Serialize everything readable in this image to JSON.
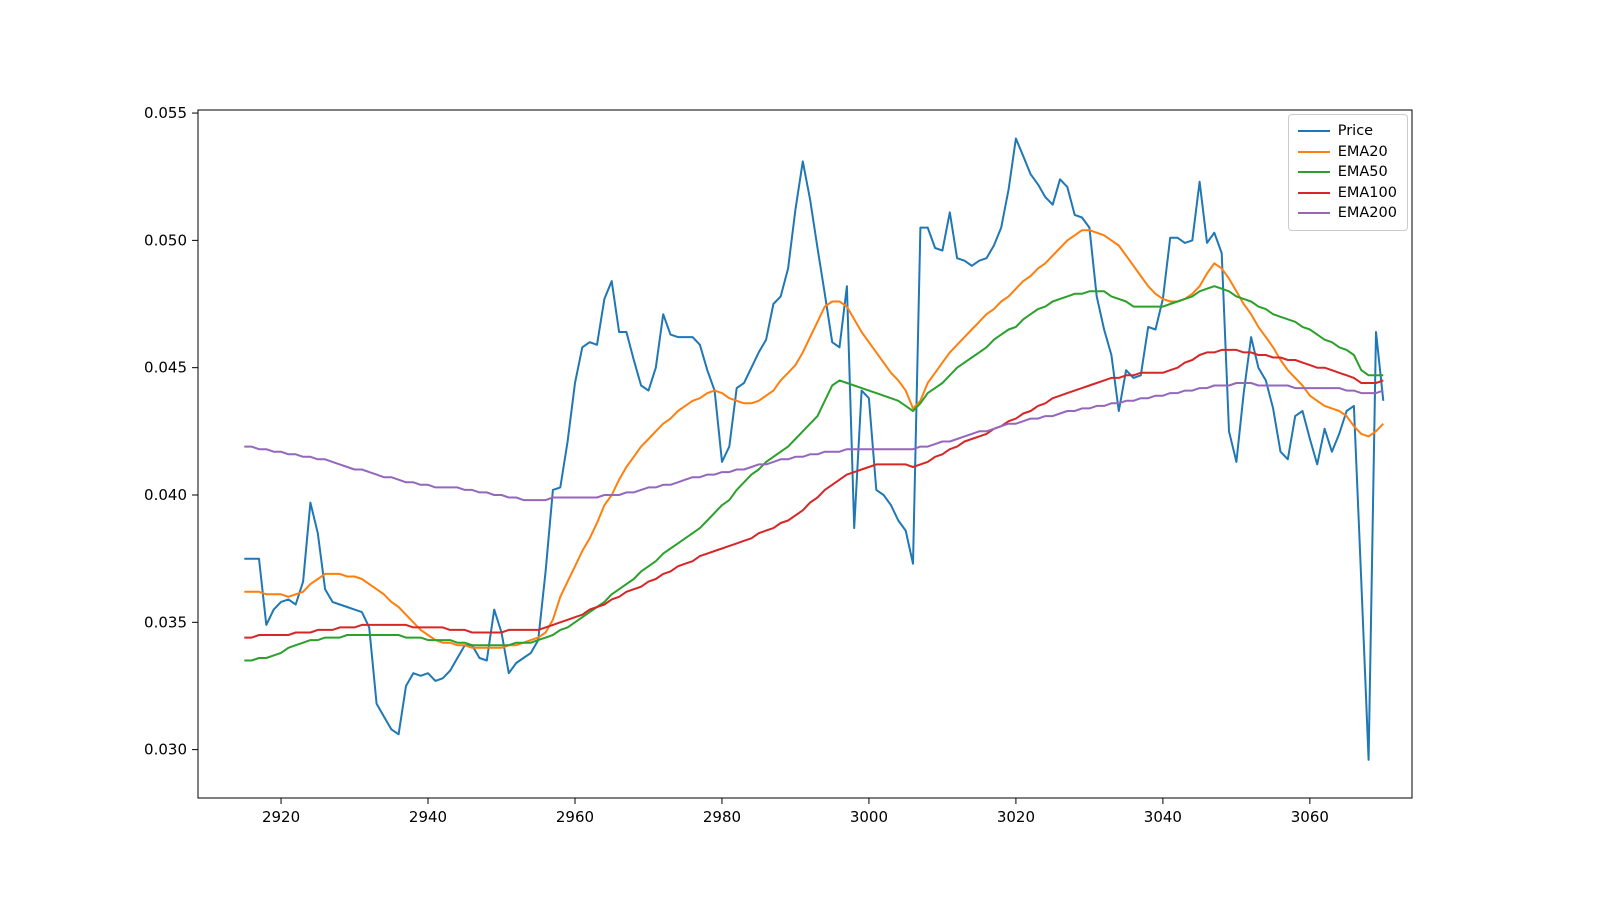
{
  "figure": {
    "background": "#ffffff"
  },
  "legend": {
    "position": "upper right"
  },
  "axis": {
    "x_tick_labels": [
      "2920",
      "2940",
      "2960",
      "2980",
      "3000",
      "3020",
      "3040",
      "3060"
    ],
    "y_tick_labels": [
      "0.030",
      "0.035",
      "0.040",
      "0.045",
      "0.050",
      "0.055"
    ]
  },
  "chart_data": {
    "type": "line",
    "title": "",
    "xlabel": "",
    "ylabel": "",
    "grid": false,
    "legend_position": "upper right",
    "xlim": [
      2908.7,
      3073.9
    ],
    "ylim": [
      0.0281,
      0.05512
    ],
    "x_ticks": [
      2920,
      2940,
      2960,
      2980,
      3000,
      3020,
      3040,
      3060
    ],
    "y_ticks": [
      0.03,
      0.035,
      0.04,
      0.045,
      0.05,
      0.055
    ],
    "x": [
      2915,
      2916,
      2917,
      2918,
      2919,
      2920,
      2921,
      2922,
      2923,
      2924,
      2925,
      2926,
      2927,
      2928,
      2929,
      2930,
      2931,
      2932,
      2933,
      2934,
      2935,
      2936,
      2937,
      2938,
      2939,
      2940,
      2941,
      2942,
      2943,
      2944,
      2945,
      2946,
      2947,
      2948,
      2949,
      2950,
      2951,
      2952,
      2953,
      2954,
      2955,
      2956,
      2957,
      2958,
      2959,
      2960,
      2961,
      2962,
      2963,
      2964,
      2965,
      2966,
      2967,
      2968,
      2969,
      2970,
      2971,
      2972,
      2973,
      2974,
      2975,
      2976,
      2977,
      2978,
      2979,
      2980,
      2981,
      2982,
      2983,
      2984,
      2985,
      2986,
      2987,
      2988,
      2989,
      2990,
      2991,
      2992,
      2993,
      2994,
      2995,
      2996,
      2997,
      2998,
      2999,
      3000,
      3001,
      3002,
      3003,
      3004,
      3005,
      3006,
      3007,
      3008,
      3009,
      3010,
      3011,
      3012,
      3013,
      3014,
      3015,
      3016,
      3017,
      3018,
      3019,
      3020,
      3021,
      3022,
      3023,
      3024,
      3025,
      3026,
      3027,
      3028,
      3029,
      3030,
      3031,
      3032,
      3033,
      3034,
      3035,
      3036,
      3037,
      3038,
      3039,
      3040,
      3041,
      3042,
      3043,
      3044,
      3045,
      3046,
      3047,
      3048,
      3049,
      3050,
      3051,
      3052,
      3053,
      3054,
      3055,
      3056,
      3057,
      3058,
      3059,
      3060,
      3061,
      3062,
      3063,
      3064,
      3065,
      3066,
      3067,
      3068,
      3069,
      3070
    ],
    "series": [
      {
        "name": "Price",
        "color": "#1f77b4",
        "values": [
          0.0375,
          0.0375,
          0.0375,
          0.0349,
          0.0355,
          0.0358,
          0.0359,
          0.0357,
          0.0366,
          0.0397,
          0.0385,
          0.0363,
          0.0358,
          0.0357,
          0.0356,
          0.0355,
          0.0354,
          0.0348,
          0.0318,
          0.0313,
          0.0308,
          0.0306,
          0.0325,
          0.033,
          0.0329,
          0.033,
          0.0327,
          0.0328,
          0.0331,
          0.0336,
          0.0341,
          0.0341,
          0.0336,
          0.0335,
          0.0355,
          0.0346,
          0.033,
          0.0334,
          0.0336,
          0.0338,
          0.0343,
          0.037,
          0.0402,
          0.0403,
          0.0421,
          0.0444,
          0.0458,
          0.046,
          0.0459,
          0.0477,
          0.0484,
          0.0464,
          0.0464,
          0.0453,
          0.0443,
          0.0441,
          0.045,
          0.0471,
          0.0463,
          0.0462,
          0.0462,
          0.0462,
          0.0459,
          0.0449,
          0.0441,
          0.0413,
          0.0419,
          0.0442,
          0.0444,
          0.045,
          0.0456,
          0.0461,
          0.0475,
          0.0478,
          0.0489,
          0.0512,
          0.0531,
          0.0516,
          0.0497,
          0.0479,
          0.046,
          0.0458,
          0.0482,
          0.0387,
          0.0441,
          0.0438,
          0.0402,
          0.04,
          0.0396,
          0.039,
          0.0386,
          0.0373,
          0.0505,
          0.0505,
          0.0497,
          0.0496,
          0.0511,
          0.0493,
          0.0492,
          0.049,
          0.0492,
          0.0493,
          0.0498,
          0.0505,
          0.052,
          0.054,
          0.0533,
          0.0526,
          0.0522,
          0.0517,
          0.0514,
          0.0524,
          0.0521,
          0.051,
          0.0509,
          0.0505,
          0.0478,
          0.0465,
          0.0455,
          0.0433,
          0.0449,
          0.0446,
          0.0447,
          0.0466,
          0.0465,
          0.0477,
          0.0501,
          0.0501,
          0.0499,
          0.05,
          0.0523,
          0.0499,
          0.0503,
          0.0495,
          0.0425,
          0.0413,
          0.044,
          0.0462,
          0.045,
          0.0445,
          0.0434,
          0.0417,
          0.0414,
          0.0431,
          0.0433,
          0.0422,
          0.0412,
          0.0426,
          0.0417,
          0.0424,
          0.0433,
          0.0435,
          0.0366,
          0.0296,
          0.0464,
          0.0437
        ]
      },
      {
        "name": "EMA20",
        "color": "#ff7f0e",
        "values": [
          0.0362,
          0.0362,
          0.0362,
          0.0361,
          0.0361,
          0.0361,
          0.036,
          0.0361,
          0.0362,
          0.0365,
          0.0367,
          0.0369,
          0.0369,
          0.0369,
          0.0368,
          0.0368,
          0.0367,
          0.0365,
          0.0363,
          0.0361,
          0.0358,
          0.0356,
          0.0353,
          0.035,
          0.0347,
          0.0345,
          0.0343,
          0.0342,
          0.0342,
          0.0341,
          0.0341,
          0.034,
          0.034,
          0.034,
          0.034,
          0.034,
          0.0341,
          0.0341,
          0.0342,
          0.0343,
          0.0344,
          0.0346,
          0.0351,
          0.036,
          0.0366,
          0.0372,
          0.0378,
          0.0383,
          0.0389,
          0.0396,
          0.04,
          0.0406,
          0.0411,
          0.0415,
          0.0419,
          0.0422,
          0.0425,
          0.0428,
          0.043,
          0.0433,
          0.0435,
          0.0437,
          0.0438,
          0.044,
          0.0441,
          0.044,
          0.0438,
          0.0437,
          0.0436,
          0.0436,
          0.0437,
          0.0439,
          0.0441,
          0.0445,
          0.0448,
          0.0451,
          0.0456,
          0.0462,
          0.0468,
          0.0474,
          0.0476,
          0.0476,
          0.0474,
          0.0469,
          0.0464,
          0.046,
          0.0456,
          0.0452,
          0.0448,
          0.0445,
          0.0441,
          0.0434,
          0.0437,
          0.0444,
          0.0448,
          0.0452,
          0.0456,
          0.0459,
          0.0462,
          0.0465,
          0.0468,
          0.0471,
          0.0473,
          0.0476,
          0.0478,
          0.0481,
          0.0484,
          0.0486,
          0.0489,
          0.0491,
          0.0494,
          0.0497,
          0.05,
          0.0502,
          0.0504,
          0.0504,
          0.0503,
          0.0502,
          0.05,
          0.0498,
          0.0494,
          0.049,
          0.0486,
          0.0482,
          0.0479,
          0.0477,
          0.0476,
          0.0476,
          0.0477,
          0.0479,
          0.0482,
          0.0487,
          0.0491,
          0.0489,
          0.0485,
          0.048,
          0.0475,
          0.0471,
          0.0466,
          0.0462,
          0.0458,
          0.0453,
          0.0449,
          0.0446,
          0.0443,
          0.0439,
          0.0437,
          0.0435,
          0.0434,
          0.0433,
          0.0431,
          0.0427,
          0.0424,
          0.0423,
          0.0425,
          0.0428
        ]
      },
      {
        "name": "EMA50",
        "color": "#2ca02c",
        "values": [
          0.0335,
          0.0335,
          0.0336,
          0.0336,
          0.0337,
          0.0338,
          0.034,
          0.0341,
          0.0342,
          0.0343,
          0.0343,
          0.0344,
          0.0344,
          0.0344,
          0.0345,
          0.0345,
          0.0345,
          0.0345,
          0.0345,
          0.0345,
          0.0345,
          0.0345,
          0.0344,
          0.0344,
          0.0344,
          0.0343,
          0.0343,
          0.0343,
          0.0343,
          0.0342,
          0.0342,
          0.0341,
          0.0341,
          0.0341,
          0.0341,
          0.0341,
          0.0341,
          0.0342,
          0.0342,
          0.0342,
          0.0343,
          0.0344,
          0.0345,
          0.0347,
          0.0348,
          0.035,
          0.0352,
          0.0354,
          0.0356,
          0.0358,
          0.0361,
          0.0363,
          0.0365,
          0.0367,
          0.037,
          0.0372,
          0.0374,
          0.0377,
          0.0379,
          0.0381,
          0.0383,
          0.0385,
          0.0387,
          0.039,
          0.0393,
          0.0396,
          0.0398,
          0.0402,
          0.0405,
          0.0408,
          0.041,
          0.0413,
          0.0415,
          0.0417,
          0.0419,
          0.0422,
          0.0425,
          0.0428,
          0.0431,
          0.0437,
          0.0443,
          0.0445,
          0.0444,
          0.0443,
          0.0442,
          0.0441,
          0.044,
          0.0439,
          0.0438,
          0.0437,
          0.0435,
          0.0433,
          0.0436,
          0.044,
          0.0442,
          0.0444,
          0.0447,
          0.045,
          0.0452,
          0.0454,
          0.0456,
          0.0458,
          0.0461,
          0.0463,
          0.0465,
          0.0466,
          0.0469,
          0.0471,
          0.0473,
          0.0474,
          0.0476,
          0.0477,
          0.0478,
          0.0479,
          0.0479,
          0.048,
          0.048,
          0.048,
          0.0478,
          0.0477,
          0.0476,
          0.0474,
          0.0474,
          0.0474,
          0.0474,
          0.0474,
          0.0475,
          0.0476,
          0.0477,
          0.0478,
          0.048,
          0.0481,
          0.0482,
          0.0481,
          0.048,
          0.0478,
          0.0477,
          0.0476,
          0.0474,
          0.0473,
          0.0471,
          0.047,
          0.0469,
          0.0468,
          0.0466,
          0.0465,
          0.0463,
          0.0461,
          0.046,
          0.0458,
          0.0457,
          0.0455,
          0.0449,
          0.0447,
          0.0447,
          0.0447
        ]
      },
      {
        "name": "EMA100",
        "color": "#d62728",
        "values": [
          0.0344,
          0.0344,
          0.0345,
          0.0345,
          0.0345,
          0.0345,
          0.0345,
          0.0346,
          0.0346,
          0.0346,
          0.0347,
          0.0347,
          0.0347,
          0.0348,
          0.0348,
          0.0348,
          0.0349,
          0.0349,
          0.0349,
          0.0349,
          0.0349,
          0.0349,
          0.0349,
          0.0348,
          0.0348,
          0.0348,
          0.0348,
          0.0348,
          0.0347,
          0.0347,
          0.0347,
          0.0346,
          0.0346,
          0.0346,
          0.0346,
          0.0346,
          0.0347,
          0.0347,
          0.0347,
          0.0347,
          0.0347,
          0.0348,
          0.0349,
          0.035,
          0.0351,
          0.0352,
          0.0353,
          0.0355,
          0.0356,
          0.0357,
          0.0359,
          0.036,
          0.0362,
          0.0363,
          0.0364,
          0.0366,
          0.0367,
          0.0369,
          0.037,
          0.0372,
          0.0373,
          0.0374,
          0.0376,
          0.0377,
          0.0378,
          0.0379,
          0.038,
          0.0381,
          0.0382,
          0.0383,
          0.0385,
          0.0386,
          0.0387,
          0.0389,
          0.039,
          0.0392,
          0.0394,
          0.0397,
          0.0399,
          0.0402,
          0.0404,
          0.0406,
          0.0408,
          0.0409,
          0.041,
          0.0411,
          0.0412,
          0.0412,
          0.0412,
          0.0412,
          0.0412,
          0.0411,
          0.0412,
          0.0413,
          0.0415,
          0.0416,
          0.0418,
          0.0419,
          0.0421,
          0.0422,
          0.0423,
          0.0424,
          0.0426,
          0.0427,
          0.0429,
          0.043,
          0.0432,
          0.0433,
          0.0435,
          0.0436,
          0.0438,
          0.0439,
          0.044,
          0.0441,
          0.0442,
          0.0443,
          0.0444,
          0.0445,
          0.0446,
          0.0446,
          0.0447,
          0.0447,
          0.0448,
          0.0448,
          0.0448,
          0.0448,
          0.0449,
          0.045,
          0.0452,
          0.0453,
          0.0455,
          0.0456,
          0.0456,
          0.0457,
          0.0457,
          0.0457,
          0.0456,
          0.0456,
          0.0455,
          0.0455,
          0.0454,
          0.0454,
          0.0453,
          0.0453,
          0.0452,
          0.0451,
          0.045,
          0.045,
          0.0449,
          0.0448,
          0.0447,
          0.0446,
          0.0444,
          0.0444,
          0.0444,
          0.0445
        ]
      },
      {
        "name": "EMA200",
        "color": "#9467bd",
        "values": [
          0.0419,
          0.0419,
          0.0418,
          0.0418,
          0.0417,
          0.0417,
          0.0416,
          0.0416,
          0.0415,
          0.0415,
          0.0414,
          0.0414,
          0.0413,
          0.0412,
          0.0411,
          0.041,
          0.041,
          0.0409,
          0.0408,
          0.0407,
          0.0407,
          0.0406,
          0.0405,
          0.0405,
          0.0404,
          0.0404,
          0.0403,
          0.0403,
          0.0403,
          0.0403,
          0.0402,
          0.0402,
          0.0401,
          0.0401,
          0.04,
          0.04,
          0.0399,
          0.0399,
          0.0398,
          0.0398,
          0.0398,
          0.0398,
          0.0399,
          0.0399,
          0.0399,
          0.0399,
          0.0399,
          0.0399,
          0.0399,
          0.04,
          0.04,
          0.04,
          0.0401,
          0.0401,
          0.0402,
          0.0403,
          0.0403,
          0.0404,
          0.0404,
          0.0405,
          0.0406,
          0.0407,
          0.0407,
          0.0408,
          0.0408,
          0.0409,
          0.0409,
          0.041,
          0.041,
          0.0411,
          0.0412,
          0.0412,
          0.0413,
          0.0414,
          0.0414,
          0.0415,
          0.0415,
          0.0416,
          0.0416,
          0.0417,
          0.0417,
          0.0417,
          0.0418,
          0.0418,
          0.0418,
          0.0418,
          0.0418,
          0.0418,
          0.0418,
          0.0418,
          0.0418,
          0.0418,
          0.0419,
          0.0419,
          0.042,
          0.0421,
          0.0421,
          0.0422,
          0.0423,
          0.0424,
          0.0425,
          0.0425,
          0.0426,
          0.0427,
          0.0428,
          0.0428,
          0.0429,
          0.043,
          0.043,
          0.0431,
          0.0431,
          0.0432,
          0.0433,
          0.0433,
          0.0434,
          0.0434,
          0.0435,
          0.0435,
          0.0436,
          0.0436,
          0.0437,
          0.0437,
          0.0438,
          0.0438,
          0.0439,
          0.0439,
          0.044,
          0.044,
          0.0441,
          0.0441,
          0.0442,
          0.0442,
          0.0443,
          0.0443,
          0.0443,
          0.0444,
          0.0444,
          0.0444,
          0.0443,
          0.0443,
          0.0443,
          0.0443,
          0.0443,
          0.0442,
          0.0442,
          0.0442,
          0.0442,
          0.0442,
          0.0442,
          0.0442,
          0.0441,
          0.0441,
          0.044,
          0.044,
          0.044,
          0.0441
        ]
      }
    ]
  }
}
